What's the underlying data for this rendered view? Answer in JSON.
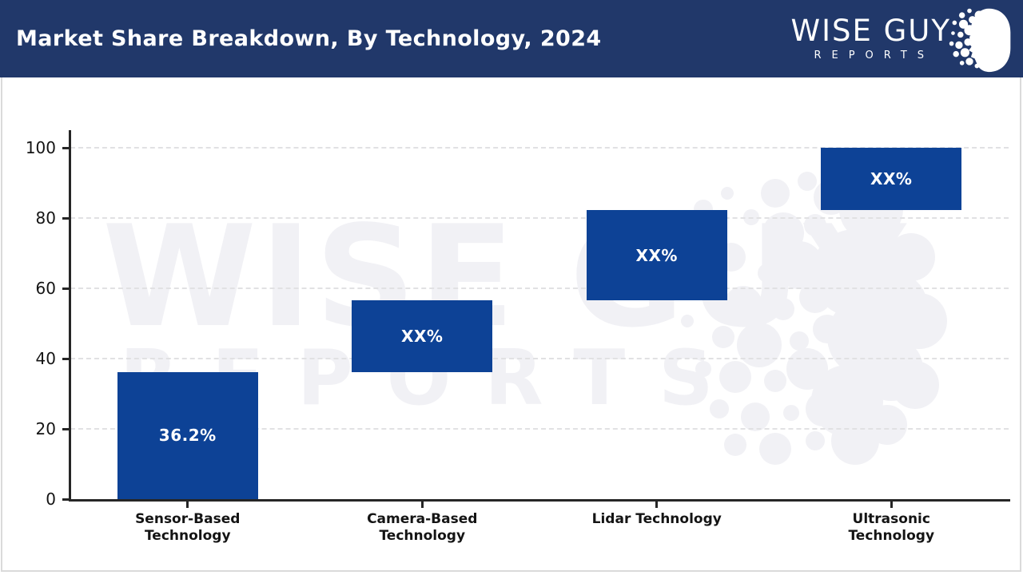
{
  "header": {
    "title": "Market Share Breakdown, By Technology, 2024",
    "logo_line1": "WISE GUY",
    "logo_line2": "REPORTS",
    "bg_color": "#21386a"
  },
  "watermark": {
    "line1": "WISE GUY",
    "line2": "REPORTS"
  },
  "chart_data": {
    "type": "bar",
    "subtype": "waterfall",
    "title": "Market Share Breakdown, By Technology, 2024",
    "categories": [
      "Sensor-Based Technology",
      "Camera-Based Technology",
      "Lidar Technology",
      "Ultrasonic Technology"
    ],
    "category_lines": [
      [
        "Sensor-Based",
        "Technology"
      ],
      [
        "Camera-Based",
        "Technology"
      ],
      [
        "Lidar Technology"
      ],
      [
        "Ultrasonic",
        "Technology"
      ]
    ],
    "series": [
      {
        "name": "Market Share",
        "segments": [
          {
            "category": "Sensor-Based Technology",
            "start": 0,
            "end": 36.2,
            "label": "36.2%"
          },
          {
            "category": "Camera-Based Technology",
            "start": 36.2,
            "end": 56.6,
            "label": "XX%"
          },
          {
            "category": "Lidar Technology",
            "start": 56.6,
            "end": 82.2,
            "label": "XX%"
          },
          {
            "category": "Ultrasonic Technology",
            "start": 82.2,
            "end": 100,
            "label": "XX%"
          }
        ]
      }
    ],
    "xlabel": "",
    "ylabel": "",
    "ylim": [
      0,
      100
    ],
    "yticks": [
      0,
      20,
      40,
      60,
      80,
      100
    ],
    "grid": "horizontal-dashed",
    "legend": "none",
    "colors": {
      "bar": "#0d4296",
      "bar_label": "#ffffff",
      "axis": "#262626",
      "tick_label": "#141414",
      "gridline": "#e1e1e3",
      "header_bg": "#21386a",
      "watermark": "#f1f1f5"
    }
  }
}
